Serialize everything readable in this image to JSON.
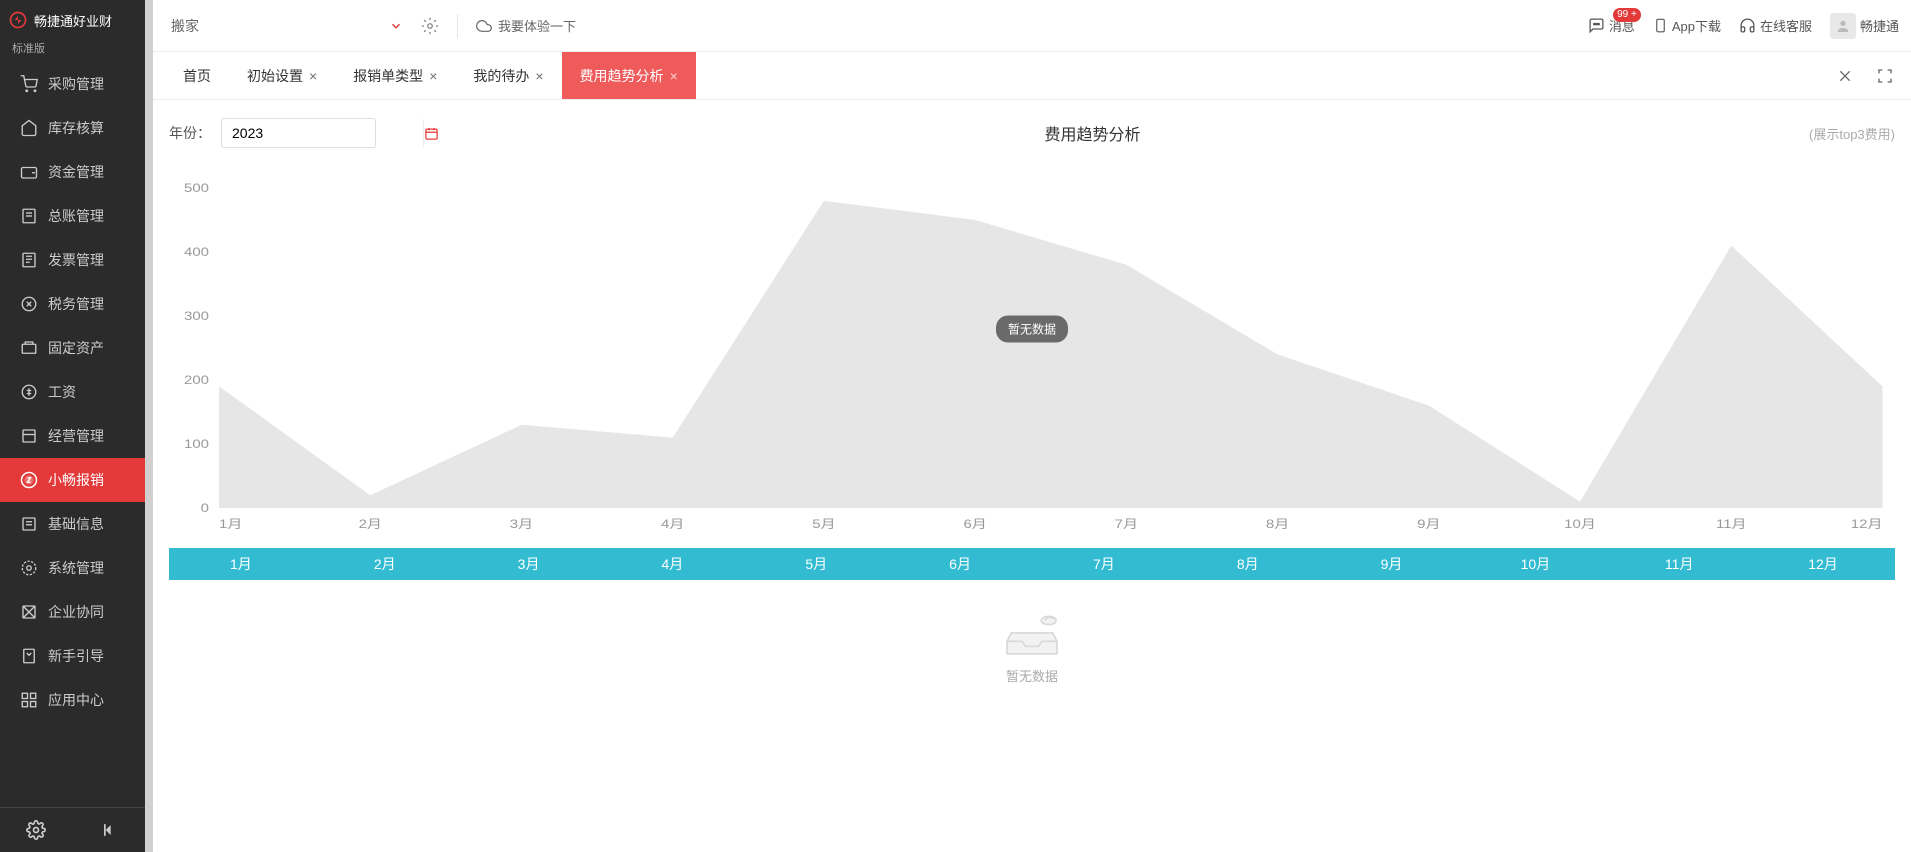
{
  "brand": "畅捷通好业财",
  "version": "标准版",
  "sidebar": {
    "items": [
      {
        "icon": "cart",
        "label": "采购管理"
      },
      {
        "icon": "home",
        "label": "库存核算"
      },
      {
        "icon": "wallet",
        "label": "资金管理"
      },
      {
        "icon": "ledger",
        "label": "总账管理"
      },
      {
        "icon": "invoice",
        "label": "发票管理"
      },
      {
        "icon": "tax",
        "label": "税务管理"
      },
      {
        "icon": "asset",
        "label": "固定资产"
      },
      {
        "icon": "salary",
        "label": "工资"
      },
      {
        "icon": "biz",
        "label": "经营管理"
      },
      {
        "icon": "expense",
        "label": "小畅报销",
        "active": true
      },
      {
        "icon": "info",
        "label": "基础信息"
      },
      {
        "icon": "system",
        "label": "系统管理"
      },
      {
        "icon": "collab",
        "label": "企业协同"
      },
      {
        "icon": "guide",
        "label": "新手引导"
      },
      {
        "icon": "apps",
        "label": "应用中心"
      }
    ]
  },
  "topbar": {
    "breadcrumb": "搬家",
    "try_text": "我要体验一下",
    "msg": "消息",
    "msg_badge": "99 +",
    "app": "App下载",
    "service": "在线客服",
    "user": "畅捷通"
  },
  "tabs": {
    "items": [
      {
        "label": "首页",
        "closable": false
      },
      {
        "label": "初始设置",
        "closable": true
      },
      {
        "label": "报销单类型",
        "closable": true
      },
      {
        "label": "我的待办",
        "closable": true
      },
      {
        "label": "费用趋势分析",
        "closable": true,
        "active": true
      }
    ]
  },
  "filter": {
    "year_label": "年份：",
    "year_value": "2023"
  },
  "chart": {
    "title": "费用趋势分析",
    "subtitle": "(展示top3费用)",
    "tooltip": "暂无数据",
    "type": "area",
    "x_categories": [
      "1月",
      "2月",
      "3月",
      "4月",
      "5月",
      "6月",
      "7月",
      "8月",
      "9月",
      "10月",
      "11月",
      "12月"
    ],
    "y_ticks": [
      0,
      100,
      200,
      300,
      400,
      500
    ],
    "ylim": [
      0,
      500
    ],
    "series": [
      {
        "name": "series1",
        "color": "#e6e6e6",
        "values": [
          190,
          20,
          130,
          110,
          480,
          450,
          380,
          240,
          160,
          10,
          410,
          190
        ]
      }
    ],
    "background_color": "#ffffff",
    "axis_color": "#999999",
    "label_fontsize": 12,
    "tooltip_bg": "#6a6a6a",
    "slider_bg": "#33bcd1"
  },
  "slider_months": [
    "1月",
    "2月",
    "3月",
    "4月",
    "5月",
    "6月",
    "7月",
    "8月",
    "9月",
    "10月",
    "11月",
    "12月"
  ],
  "empty": {
    "text": "暂无数据"
  }
}
